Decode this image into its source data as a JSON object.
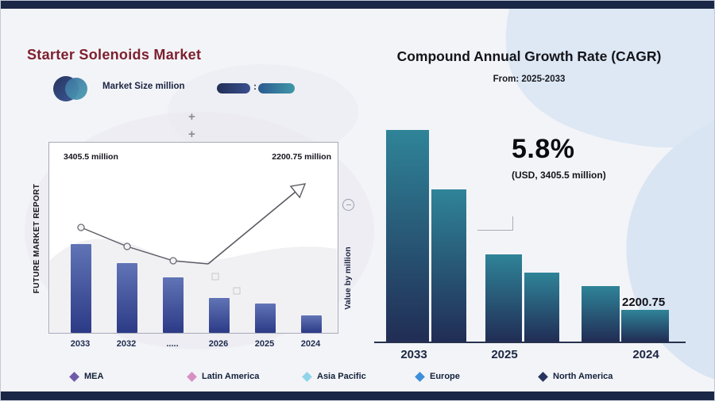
{
  "frame": {
    "band_color": "#1a2746",
    "bg_color": "#f3f4f8",
    "swoosh_color": "#d9e5f2",
    "left_title_color": "#7d1f2d"
  },
  "decor": {
    "plus_sign": "+",
    "pill_separator": ":"
  },
  "left": {
    "title": "Starter Solenoids  Market",
    "icon_label": "Market Size million"
  },
  "right": {
    "title": "Compound Annual Growth Rate (CAGR)",
    "subtitle": "From: 2025-2033",
    "cagr_value": "5.8%",
    "cagr_note": "(USD, 3405.5 million)",
    "value_callout": "2200.75"
  },
  "legend": {
    "items": [
      {
        "label": "MEA",
        "color": "#6f5aa8"
      },
      {
        "label": "Latin America",
        "color": "#d78fc1"
      },
      {
        "label": "Asia Pacific",
        "color": "#8fd4e8"
      },
      {
        "label": "Europe",
        "color": "#3e8fd8"
      },
      {
        "label": "North America",
        "color": "#27355e"
      }
    ]
  },
  "chart_data": [
    {
      "type": "bar",
      "name": "market-size-by-year",
      "title": "Starter Solenoids Market - Market Size million",
      "ylabel": "FUTURE MARKET REPORT",
      "categories": [
        "2033",
        "2032",
        ".....",
        "2026",
        "2025",
        "2024"
      ],
      "values_relative": [
        112,
        88,
        70,
        44,
        37,
        22
      ],
      "annotations": [
        {
          "text": "3405.5 million",
          "position": "top-left",
          "refers_to": "2033"
        },
        {
          "text": "2200.75 million",
          "position": "top-right",
          "refers_to": "2024"
        }
      ],
      "trend_line": "markers descend from 2033 to 2026 then arrow rises sharply toward top-right",
      "bar_gradient": [
        "#6174b6",
        "#2c3a86"
      ],
      "legend_position": "none",
      "grid": false
    },
    {
      "type": "bar",
      "name": "cagr-comparison",
      "title": "Compound Annual Growth Rate (CAGR) From: 2025-2033",
      "ylabel": "Value by million",
      "categories": [
        "2033",
        "2025",
        "2024"
      ],
      "series": [
        {
          "name": "front",
          "values_relative": [
            267,
            110,
            70
          ]
        },
        {
          "name": "back",
          "values_relative": [
            192,
            87,
            40
          ]
        }
      ],
      "cagr": "5.8%",
      "usd_value": "(USD, 3405.5 million)",
      "value_label_2024": "2200.75",
      "bar_gradient": [
        "#2f8498",
        "#212d55"
      ],
      "legend_position": "none",
      "grid": false
    }
  ]
}
